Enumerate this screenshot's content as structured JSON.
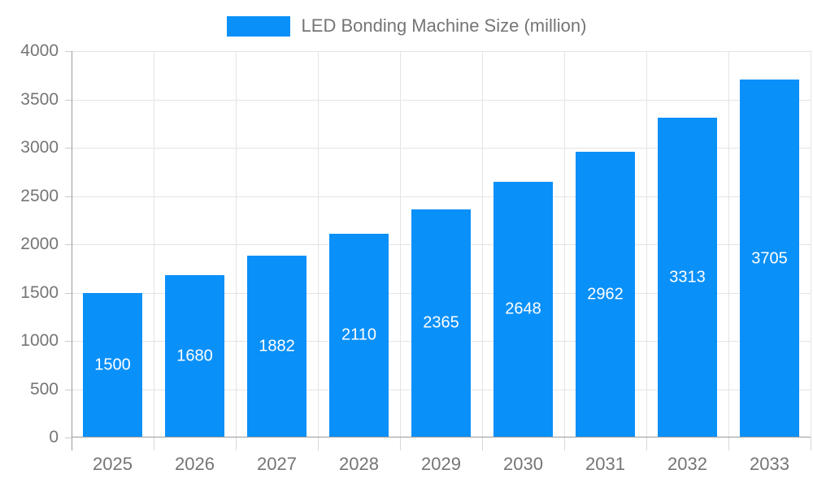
{
  "legend": {
    "label": "LED Bonding Machine Size (million)"
  },
  "colors": {
    "bar": "#0a90f9",
    "grid": "#e4e4e4",
    "axis_line": "#9a9a9a",
    "tick": "#cccccc",
    "axis_text": "#757575",
    "value_text": "#ffffff",
    "background": "#ffffff"
  },
  "chart_data": {
    "type": "bar",
    "title": "LED Bonding Machine Size (million)",
    "categories": [
      "2025",
      "2026",
      "2027",
      "2028",
      "2029",
      "2030",
      "2031",
      "2032",
      "2033"
    ],
    "values": [
      1500,
      1680,
      1882,
      2110,
      2365,
      2648,
      2962,
      3313,
      3705
    ],
    "series": [
      {
        "name": "LED Bonding Machine Size (million)",
        "values": [
          1500,
          1680,
          1882,
          2110,
          2365,
          2648,
          2962,
          3313,
          3705
        ]
      }
    ],
    "xlabel": "",
    "ylabel": "",
    "ylim": [
      0,
      4000
    ],
    "ytick_step": 500,
    "yticks": [
      0,
      500,
      1000,
      1500,
      2000,
      2500,
      3000,
      3500,
      4000
    ],
    "grid": true,
    "legend_position": "top-center",
    "value_labels": "inside-center",
    "bar_fill_fraction": 0.73
  }
}
